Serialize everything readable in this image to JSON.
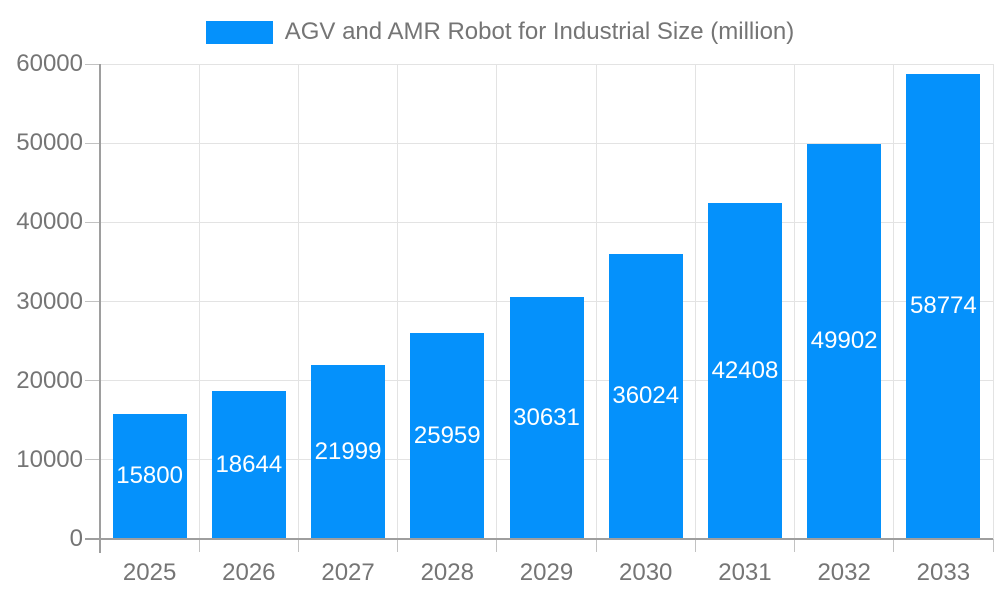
{
  "legend": {
    "label": "AGV and AMR Robot for Industrial Size (million)",
    "swatch_color": "#0591fb"
  },
  "chart_data": {
    "type": "bar",
    "title": "AGV and AMR Robot for Industrial Size (million)",
    "categories": [
      "2025",
      "2026",
      "2027",
      "2028",
      "2029",
      "2030",
      "2031",
      "2032",
      "2033"
    ],
    "values": [
      15800,
      18644,
      21999,
      25959,
      30631,
      36024,
      42408,
      49902,
      58774
    ],
    "xlabel": "",
    "ylabel": "",
    "ylim": [
      0,
      60000
    ],
    "yticks": [
      0,
      10000,
      20000,
      30000,
      40000,
      50000,
      60000
    ],
    "grid": true,
    "legend_position": "top-center",
    "bar_color": "#0591fb",
    "value_label_color": "#ffffff",
    "axis_text_color": "#757575",
    "gridline_color": "#e3e3e3",
    "axis_line_color": "#9e9e9e"
  }
}
